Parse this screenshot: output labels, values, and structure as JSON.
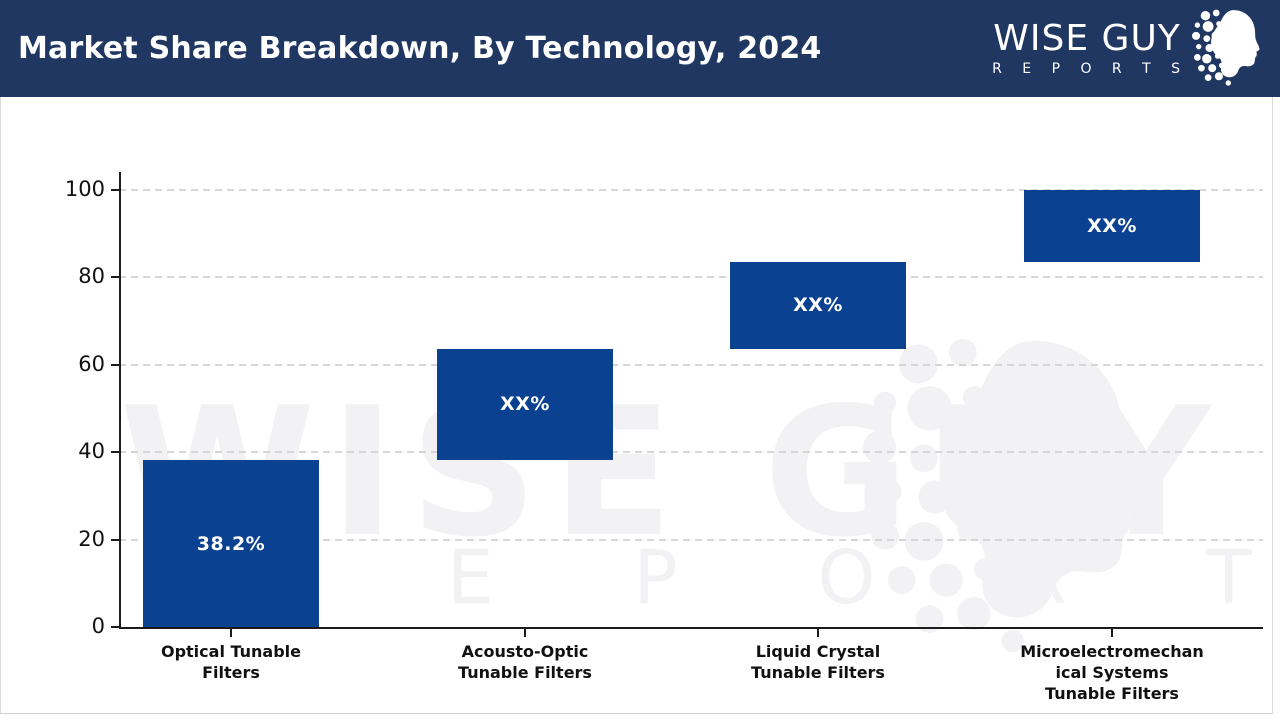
{
  "header": {
    "title": "Market Share Breakdown, By Technology, 2024",
    "bg_color": "#203761",
    "logo": {
      "line1": "WISE GUY",
      "line2": "R E P O R T S"
    }
  },
  "watermark": {
    "line1": "WISE GUY",
    "line2": "R E P O R T S"
  },
  "chart_data": {
    "type": "bar",
    "subtype": "waterfall",
    "title": "Market Share Breakdown, By Technology, 2024",
    "categories": [
      "Optical Tunable Filters",
      "Acousto-Optic Tunable Filters",
      "Liquid Crystal Tunable Filters",
      "Microelectromechanical Systems Tunable Filters"
    ],
    "category_lines": [
      [
        "Optical Tunable",
        "Filters"
      ],
      [
        "Acousto-Optic",
        "Tunable Filters"
      ],
      [
        "Liquid Crystal",
        "Tunable Filters"
      ],
      [
        "Microelectromechan",
        "ical Systems",
        "Tunable Filters"
      ]
    ],
    "segments": [
      {
        "start": 0,
        "end": 38.2,
        "label": "38.2%"
      },
      {
        "start": 38.2,
        "end": 63.7,
        "label": "XX%"
      },
      {
        "start": 63.7,
        "end": 83.5,
        "label": "XX%"
      },
      {
        "start": 83.5,
        "end": 100,
        "label": "XX%"
      }
    ],
    "ylim": [
      0,
      105
    ],
    "yticks": [
      0,
      20,
      40,
      60,
      80,
      100
    ],
    "grid": "dashed-horizontal",
    "legend": null,
    "bar_color": "#0b4191",
    "bar_label_color": "#ffffff",
    "axis_color": "#1c1c1c"
  }
}
